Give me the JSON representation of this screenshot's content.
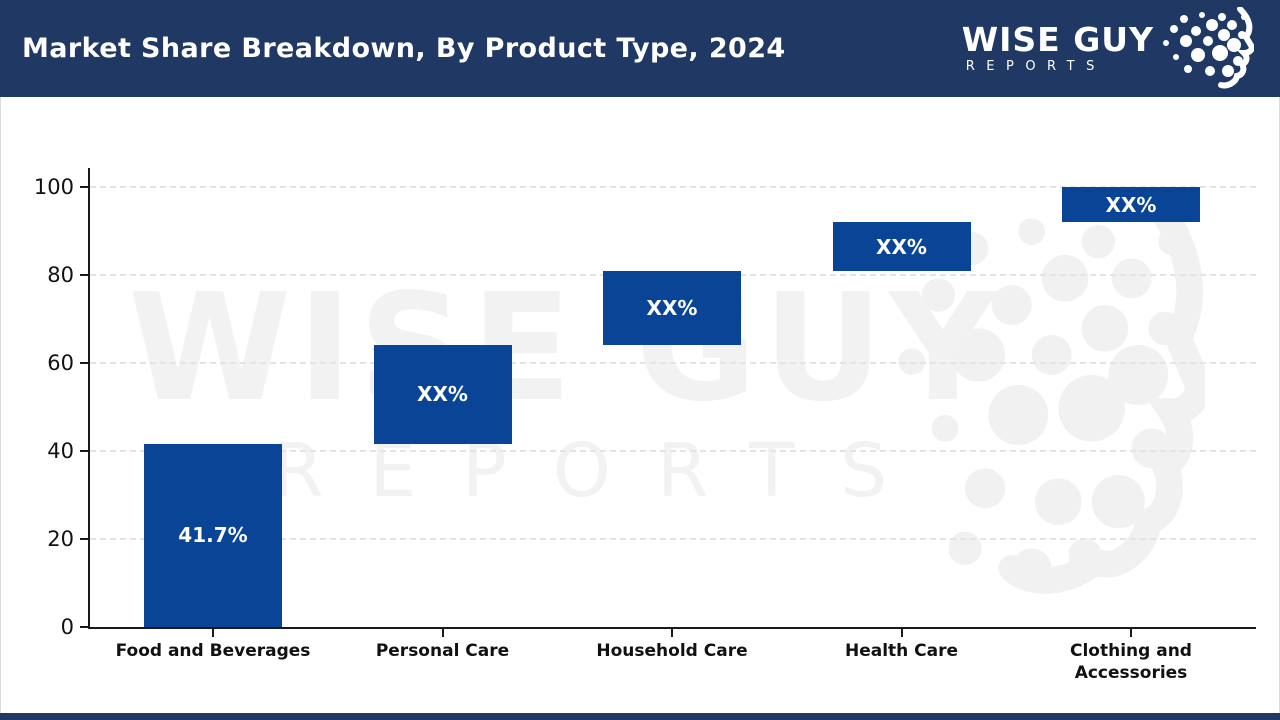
{
  "header": {
    "title": "Market Share Breakdown, By Product Type, 2024",
    "logo": {
      "name": "WISE GUY",
      "sub": "REPORTS",
      "face_icon": "dotted-face-profile"
    }
  },
  "watermark": {
    "line1": "WISE GUY",
    "line2": "REPORTS",
    "face_icon": "dotted-face-profile"
  },
  "colors": {
    "header_bg": "#1f3864",
    "footer_bar": "#1f3864",
    "bar_blue": "#0a4496",
    "watermark_gray": "#f2f2f2"
  },
  "chart_data": {
    "type": "bar",
    "subtype": "waterfall",
    "title": "Market Share Breakdown, By Product Type, 2024",
    "categories": [
      "Food and Beverages",
      "Personal Care",
      "Household Care",
      "Health Care",
      "Clothing and Accessories"
    ],
    "segments": [
      {
        "category": "Food and Beverages",
        "start": 0,
        "end": 41.7,
        "label": "41.7%"
      },
      {
        "category": "Personal Care",
        "start": 41.7,
        "end": 64.2,
        "label": "XX%"
      },
      {
        "category": "Household Care",
        "start": 64.2,
        "end": 80.9,
        "label": "XX%"
      },
      {
        "category": "Health Care",
        "start": 80.9,
        "end": 92.0,
        "label": "XX%"
      },
      {
        "category": "Clothing and Accessories",
        "start": 92.0,
        "end": 100.0,
        "label": "XX%"
      }
    ],
    "values_shown": [
      41.7,
      null,
      null,
      null,
      null
    ],
    "ylim": [
      0,
      100
    ],
    "yticks": [
      0,
      20,
      40,
      60,
      80,
      100
    ],
    "xlabel": "",
    "ylabel": "",
    "grid": "horizontal-dashed",
    "legend": false,
    "bar_color": "#0a4496",
    "bar_label_color": "#ffffff",
    "axis_color": "#1a1a1a",
    "gridline_color": "#e4e4e4"
  }
}
